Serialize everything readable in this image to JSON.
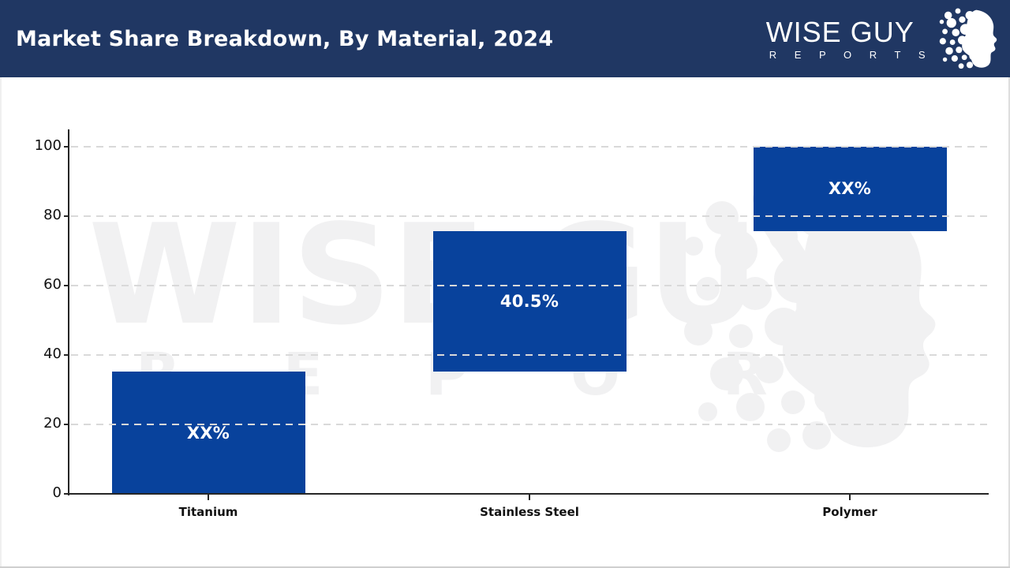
{
  "header": {
    "title": "Market Share Breakdown, By Material, 2024",
    "bg_color": "#203763",
    "logo": {
      "line1": "WISE GUY",
      "line2": "R E P O R T S",
      "face_icon": "dotted-head-profile"
    }
  },
  "watermark": {
    "line1": "WISE GUY",
    "line2": "R E P O R T S",
    "face_icon": "dotted-head-profile",
    "color": "#f1f1f2"
  },
  "chart_data": {
    "type": "bar",
    "variant": "floating-waterfall-segments",
    "title": "Market Share Breakdown, By Material, 2024",
    "categories": [
      "Titanium",
      "Stainless Steel",
      "Polymer"
    ],
    "bars": [
      {
        "category": "Titanium",
        "start": 0,
        "end": 35.2,
        "label": "XX%"
      },
      {
        "category": "Stainless Steel",
        "start": 35.2,
        "end": 75.7,
        "label": "40.5%"
      },
      {
        "category": "Polymer",
        "start": 75.7,
        "end": 100,
        "label": "XX%"
      }
    ],
    "ylim": [
      0,
      100
    ],
    "yticks": [
      0,
      20,
      40,
      60,
      80,
      100
    ],
    "xlabel": "",
    "ylabel": "",
    "grid": "horizontal-dashed",
    "legend": "none",
    "bar_color": "#08429c",
    "bar_label_color": "#ffffff",
    "axis_color": "#262626",
    "grid_color": "#d9d9d9"
  }
}
